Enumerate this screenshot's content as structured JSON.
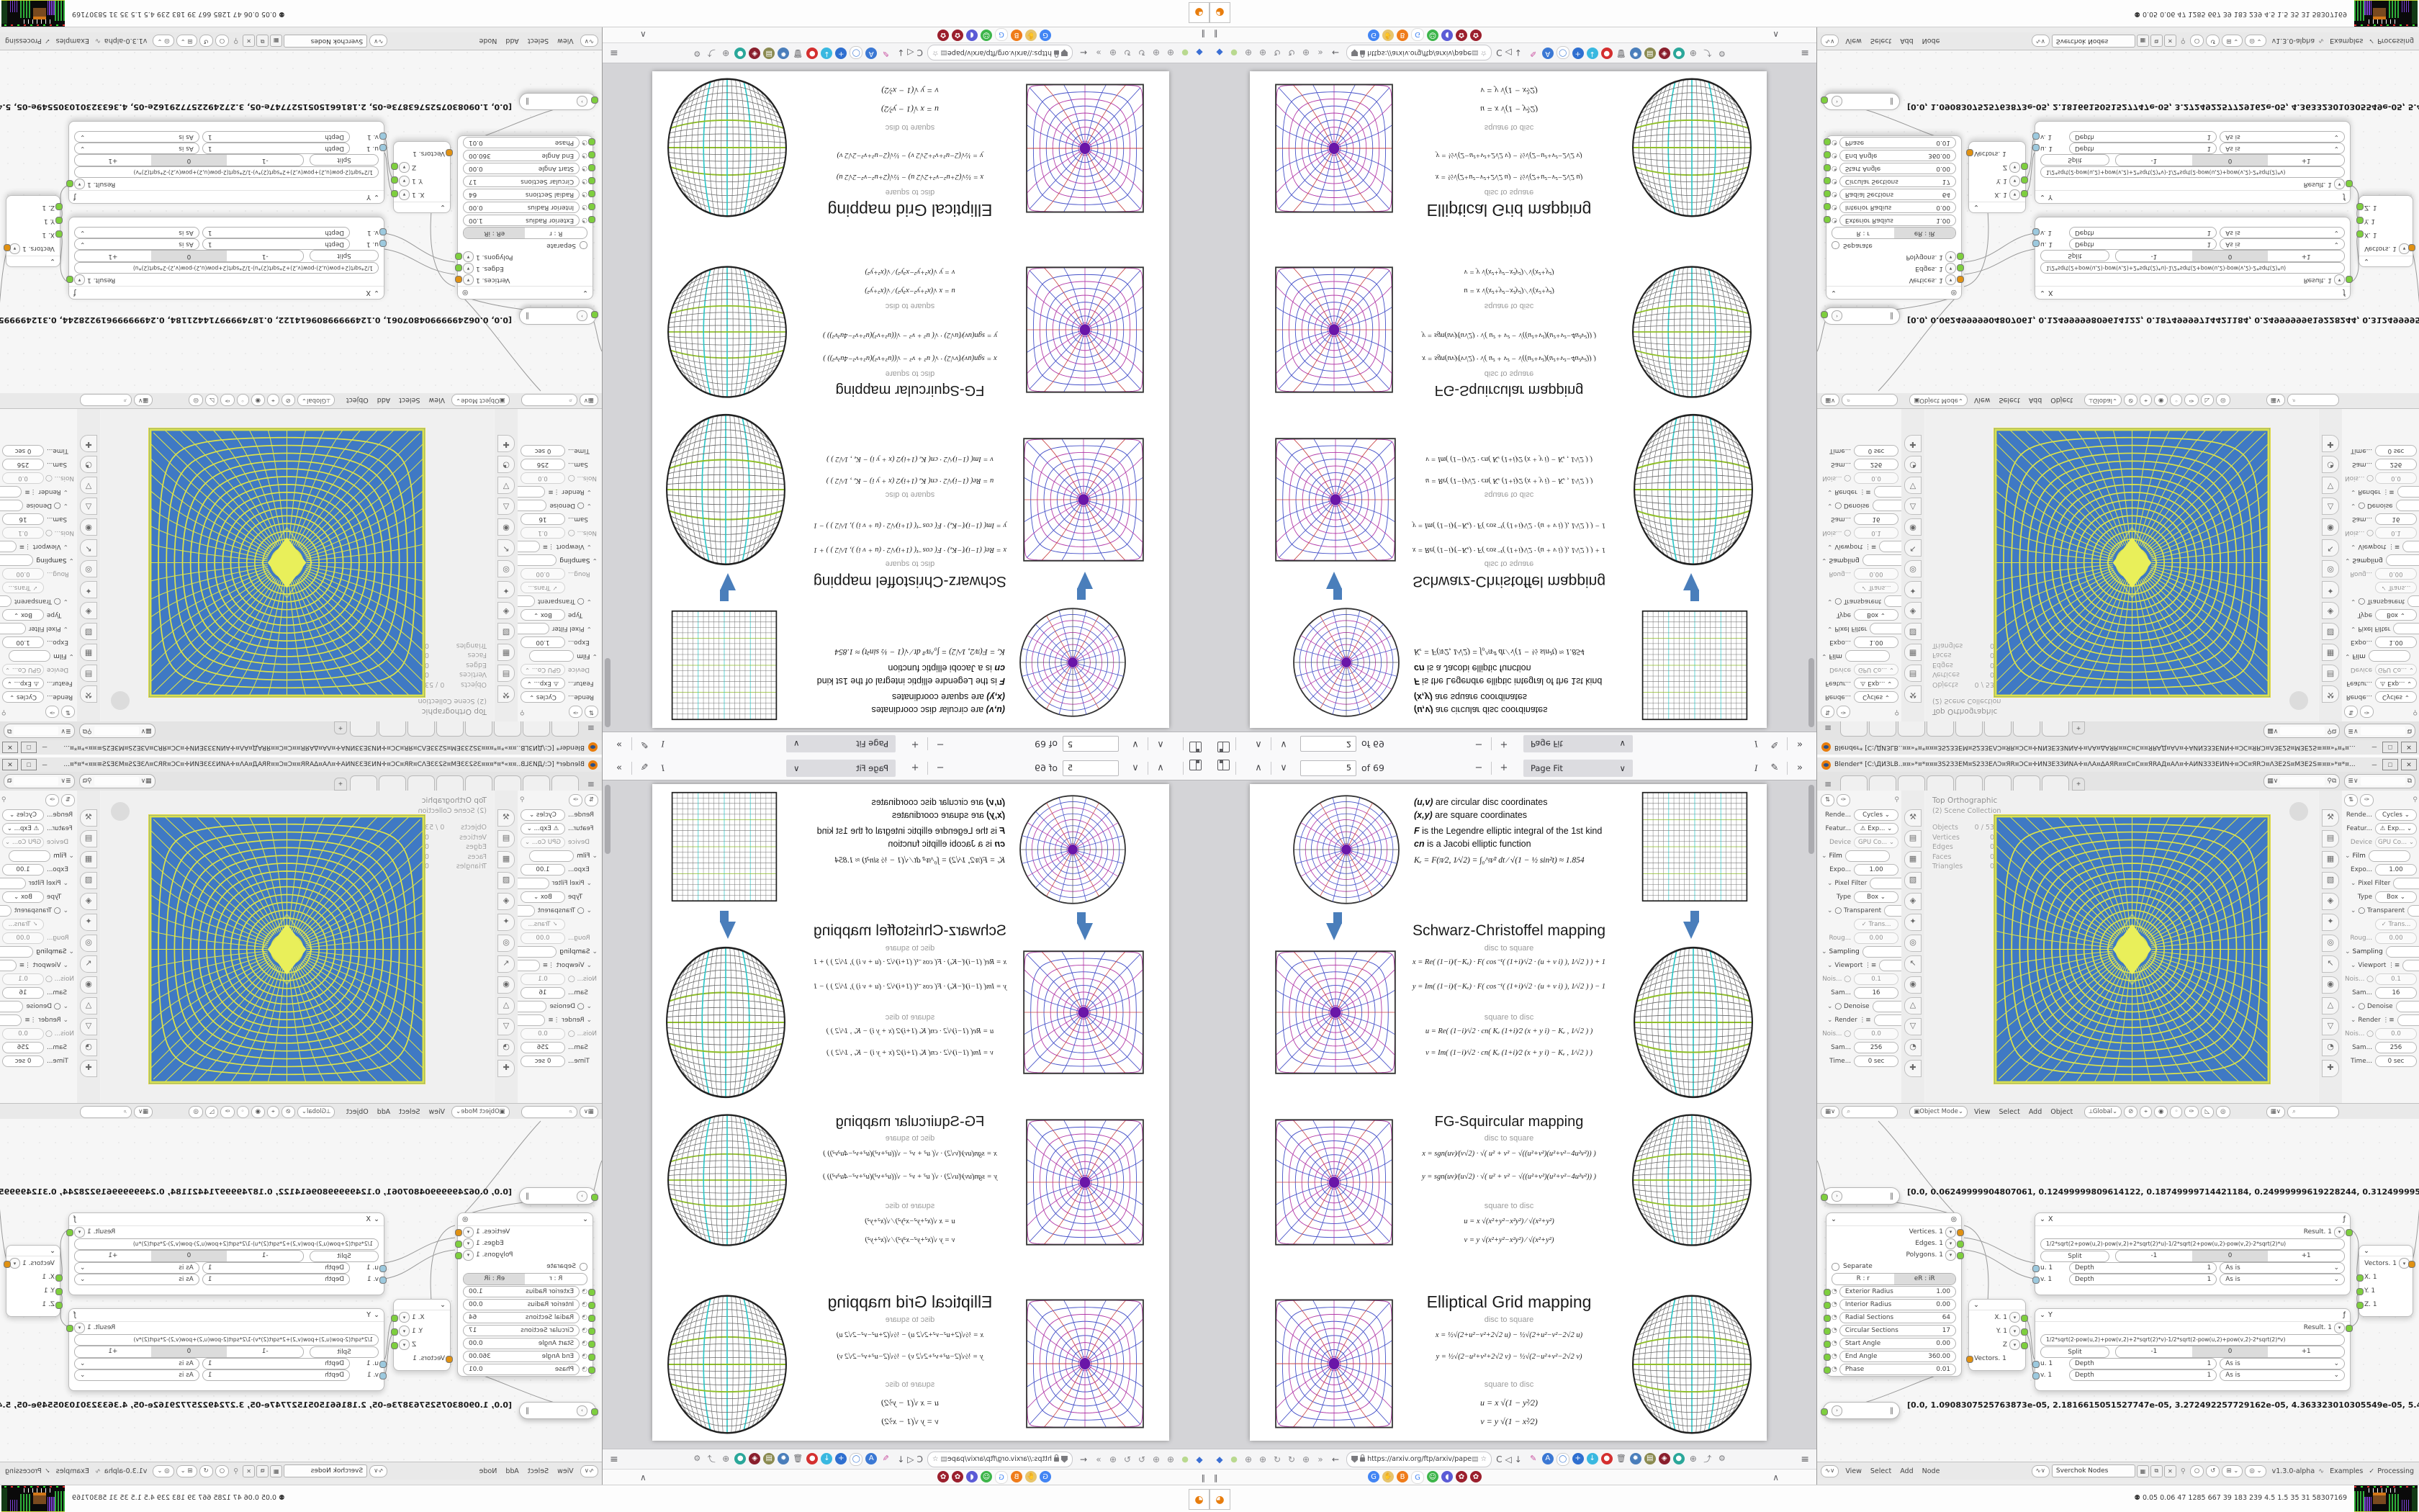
{
  "icons": {
    "chevron_up": "∧",
    "chevron_down": "∨",
    "minus": "−",
    "plus": "+",
    "text_select": "I",
    "draw": "✎",
    "double_chevron": "»",
    "back_arrow": "←",
    "reload": "C",
    "speaker": "◁",
    "download": "↓",
    "menu": "≡",
    "pause": "‖",
    "collapse_up": "∧",
    "star": "☆",
    "reader": "▤",
    "hamburger": "≡",
    "window_min": "─",
    "window_max": "□",
    "window_close": "✕",
    "add_tab": "+",
    "pin": "⚲",
    "copy": "⧉",
    "x_small": "✕",
    "person": "⚉",
    "gear": "⚙",
    "search": "⌕",
    "filter": "⇅",
    "brush": "✑",
    "caret": "⌄",
    "editor_node": "∿",
    "editor_props": "▦",
    "flag": "ƒ",
    "badge": "◎",
    "scene": "▦",
    "view_layer": "≣",
    "check": "✓",
    "dna": "∿",
    "dial": "◔"
  },
  "pdf": {
    "toolbar": {
      "page_value": "5",
      "page_value_top_half": "2",
      "of_label": "of 69",
      "zoom_label": "Page Fit"
    },
    "intro": {
      "uv_lead": "(u,v)",
      "uv_text": " are circular disc coordinates",
      "xy_lead": "(x,y)",
      "xy_text": " are square coordinates",
      "f_lead": "F",
      "f_text": " is the Legendre elliptic integral of the 1st kind",
      "cn_lead": "cn",
      "cn_text": " is a Jacobi elliptic function",
      "ke_equation": "Kₑ = F(π⁄2, 1⁄√2) = ∫₀^π⁄² dt ⁄ √(1 − ½ sin²t)  ≈ 1.854"
    },
    "sections": [
      {
        "title": "Schwarz-Christoffel mapping",
        "disc_to_square": "disc to square",
        "eq_ds_1": "x = Re( (1−i)⁄(−Kₑ) · F( cos⁻¹( (1+i)⁄√2 · (u + v i) ), 1⁄√2 ) ) + 1",
        "eq_ds_2": "y = Im( (1−i)⁄(−Kₑ) · F( cos⁻¹( (1+i)⁄√2 · (u + v i) ), 1⁄√2 ) ) − 1",
        "square_to_disc": "square to disc",
        "eq_sd_1": "u = Re( (1−i)⁄√2 · cn( Kₑ (1+i)⁄2 (x + y i) − Kₑ , 1⁄√2 ) )",
        "eq_sd_2": "v = Im( (1−i)⁄√2 · cn( Kₑ (1+i)⁄2 (x + y i) − Kₑ , 1⁄√2 ) )"
      },
      {
        "title": "FG-Squircular mapping",
        "disc_to_square": "disc to square",
        "eq_ds_1": "x = sgn(uv)⁄(v√2) · √( u² + v² − √((u²+v²)(u²+v²−4u²v²)) )",
        "eq_ds_2": "y = sgn(uv)⁄(u√2) · √( u² + v² − √((u²+v²)(u²+v²−4u²v²)) )",
        "square_to_disc": "square to disc",
        "eq_sd_1": "u = x √(x²+y²−x²y²) ⁄ √(x²+y²)",
        "eq_sd_2": "v = y √(x²+y²−x²y²) ⁄ √(x²+y²)"
      },
      {
        "title": "Elliptical Grid mapping",
        "disc_to_square": "disc to square",
        "eq_ds_1": "x = ½√(2+u²−v²+2√2 u) − ½√(2+u²−v²−2√2 u)",
        "eq_ds_2": "y = ½√(2−u²+v²+2√2 v) − ½√(2−u²+v²−2√2 v)",
        "square_to_disc": "square to disc",
        "eq_sd_1": "u = x √(1 − y²⁄2)",
        "eq_sd_2": "v = y √(1 − x²⁄2)"
      }
    ]
  },
  "browser": {
    "url": "https://arxiv.org/ftp/arxiv/papers/1709/1709",
    "nav_left_icons": [
      {
        "g": "◆",
        "style": "color:#3b6fd4;background:none;font-size:12px"
      },
      {
        "g": "●",
        "style": "color:#b9d98f;background:none;font-size:11px"
      },
      {
        "g": "⊕",
        "style": "color:#8a8a8e;background:none;font-size:12px"
      },
      {
        "g": "⊕",
        "style": "color:#8a8a8e;background:none;font-size:12px"
      },
      {
        "g": "↻",
        "style": "color:#8a8a8e;background:none;font-size:12px"
      },
      {
        "g": "↻",
        "style": "color:#8a8a8e;background:none;font-size:12px"
      },
      {
        "g": "⊕",
        "style": "color:#8a8a8e;background:none;font-size:12px"
      },
      {
        "g": "»",
        "style": "color:#8a8a8e;background:none;font-size:12px"
      }
    ],
    "extension_icons": [
      {
        "g": "✎",
        "style": "color:#c94fa0;background:none;font-size:11px"
      },
      {
        "g": "A",
        "style": "background:#3b78d4"
      },
      {
        "g": "◯",
        "style": "color:#3b78d4;background:#fff;border:1px solid #ccc;color:#3b78d4"
      },
      {
        "g": "+",
        "style": "background:#2f6fd0"
      },
      {
        "g": "↓",
        "style": "background:#39b8e0"
      },
      {
        "g": "●",
        "style": "background:#d42f2f"
      },
      {
        "g": "🗑",
        "style": "color:#6a6a6e;background:none;font-size:11px"
      },
      {
        "g": "✹",
        "style": "background:#4a7ebb"
      },
      {
        "g": "▤",
        "style": "background:#8a8a50"
      },
      {
        "g": "◈",
        "style": "background:#8a1f2d"
      },
      {
        "g": "●",
        "style": "background:#2aa79a"
      },
      {
        "g": "⊕",
        "style": "color:#7a7a7e;background:none;font-size:12px"
      },
      {
        "g": "⤴",
        "style": "color:#7a7a7e;background:none;font-size:11px"
      },
      {
        "g": "⚙",
        "style": "color:#7a7a7e;background:none;font-size:11px"
      }
    ],
    "bookmark_favicons": [
      {
        "g": "G",
        "style": "background:#4285f4"
      },
      {
        "g": "✋",
        "style": "background:#e8c46a;font-size:9px"
      },
      {
        "g": "B",
        "style": "background:#ef7c1a"
      },
      {
        "g": "G",
        "style": "background:#fff;color:#4285f4;border:1px solid #ddd;color:#4285f4"
      },
      {
        "g": "☺",
        "style": "background:#3db54a"
      },
      {
        "g": "◖",
        "style": "background:#5b5bd6"
      },
      {
        "g": "✿",
        "style": "background:#9b1f2d"
      },
      {
        "g": "✿",
        "style": "background:#9b1f2d"
      }
    ]
  },
  "taskbar": {
    "stats": "0.05 0.06  47  1285 667  39  183  239  4.5  1.5  35  31 58307169",
    "apps": [
      {
        "g": "▣",
        "style": "background:#3a3a3e;color:#7db2e8"
      },
      {
        "g": "▦",
        "style": "background:#1f8a3a;color:#dff0d0"
      },
      {
        "g": "64",
        "style": "background:#fff;color:#2a4fd4;font-size:9px;font-weight:bold;border:1px solid #2a4fd4"
      },
      {
        "g": "●",
        "style": "background:#fff;color:#e66000"
      },
      {
        "g": "▤",
        "style": "background:#fff;color:#9a9ad0;border:1px solid #bbb"
      },
      {
        "g": "🗔",
        "style": "background:#fff;color:#667;font-size:11px"
      },
      {
        "g": "◕",
        "style": "background:#fff;color:#e87d0d"
      }
    ]
  },
  "blender": {
    "title": "Blender* [C:\\ДИЗLB..¤¤»*¤*¤¤¤ЗS2ЗЗEM¤S2ЗЗEΛϽ¤ЯR¤ϽC¤✛ИNЗEЗЗИNA✛¤ΛA¤ΔAЯR¤¤Ϲ¤Ϲ¤¤ЯRAД¤AΛ¤✛AИNЗЗЗEИN✛¤ϽC¤ЯRϽ¤ΛЗE2S¤MЗE2S≡¤¤»*¤*¤...",
    "tabs": [
      "",
      "",
      "",
      "",
      "",
      "",
      "",
      ""
    ],
    "viewport": {
      "view_label": "Top Orthographic",
      "collection_label": "(2) Scene Collection",
      "stats": [
        {
          "k": "Objects",
          "v": "0 / 53"
        },
        {
          "k": "Vertices",
          "v": "0"
        },
        {
          "k": "Edges",
          "v": "0"
        },
        {
          "k": "Faces",
          "v": "0"
        },
        {
          "k": "Triangles",
          "v": "0"
        }
      ],
      "header": {
        "mode": "Object Mode",
        "menus": [
          {
            "g": "View"
          },
          {
            "g": "Select"
          },
          {
            "g": "Add"
          },
          {
            "g": "Object"
          }
        ],
        "orientation": "Global",
        "tools": [
          {
            "g": "⊘"
          },
          {
            "g": "⌖"
          },
          {
            "g": "◉"
          },
          {
            "g": "◦"
          },
          {
            "g": "✑"
          },
          {
            "g": "◺"
          },
          {
            "g": "◎"
          }
        ]
      },
      "grid": {
        "radial_sections": 64,
        "circular_sections": 17,
        "bg": "#3f79c4",
        "line": "#dce24a",
        "center": "#e9ef5a"
      }
    },
    "properties": {
      "tabs": [
        {
          "g": "⚒"
        },
        {
          "g": "▤"
        },
        {
          "g": "▦"
        },
        {
          "g": "▧"
        },
        {
          "g": "◈"
        },
        {
          "g": "✦"
        },
        {
          "g": "◎"
        },
        {
          "g": "↖"
        },
        {
          "g": "◉"
        },
        {
          "g": "△"
        },
        {
          "g": "▽"
        },
        {
          "g": "◔"
        },
        {
          "g": "✚"
        }
      ],
      "rows": [
        {
          "t": "",
          "l": "Rende...",
          "v": "Cycles ⌄"
        },
        {
          "t": "",
          "l": "Featur...",
          "v": "⚠ Exp... ⌄"
        },
        {
          "t": "dim",
          "l": "Device",
          "v": "GPU Co... ⌄"
        },
        {
          "t": "section",
          "l": "Film",
          "v": ""
        },
        {
          "t": "",
          "l": "Expo...",
          "v": "1.00"
        },
        {
          "t": "sub",
          "l": "Pixel Filter",
          "v": ""
        },
        {
          "t": "",
          "l": "Type",
          "v": "Box ⌄"
        },
        {
          "t": "sub",
          "l": "◯ Transparent",
          "v": ""
        },
        {
          "t": "dim",
          "l": "",
          "v": "✓ Trans..."
        },
        {
          "t": "dim",
          "l": "Roug...",
          "v": "0.00"
        },
        {
          "t": "section",
          "l": "Sampling",
          "v": ""
        },
        {
          "t": "sub",
          "l": "Viewport ⋮≡",
          "v": ""
        },
        {
          "t": "dim",
          "l": "Nois... ◯",
          "v": "0.1"
        },
        {
          "t": "",
          "l": "Sam...",
          "v": "16"
        },
        {
          "t": "sub",
          "l": "◯ Denoise",
          "v": ""
        },
        {
          "t": "sub",
          "l": "Render ⋮≡",
          "v": ""
        },
        {
          "t": "dim",
          "l": "Nois... ◯",
          "v": "0.0"
        },
        {
          "t": "",
          "l": "Sam...",
          "v": "256"
        },
        {
          "t": "",
          "l": "Time...",
          "v": "0 sec"
        }
      ]
    },
    "node_editor": {
      "string_top": "[0.0, 0.06249999904807061, 0.12499999809614122, 0.18749999714421184, 0.24999999619228244, 0.31249999524035305, 0.374",
      "string_bottom": "[0.0, 1.0908307525763873e-05, 2.1816615051527747e-05, 3.272492257729162e-05, 4.363323010305549e-05, 5.454153762881936",
      "torus": {
        "out_vertices": "Vertices. 1",
        "out_edges": "Edges. 1",
        "out_polygons": "Polygons. 1",
        "separate": "Separate",
        "seg_left": "R : r",
        "seg_right": "eR : iR",
        "params": [
          {
            "l": "Exterior Radius",
            "v": "1.00"
          },
          {
            "l": "Interior Radius",
            "v": "0.00"
          },
          {
            "l": "Radial Sections",
            "v": "64"
          },
          {
            "l": "Circular Sections",
            "v": "17"
          },
          {
            "l": "Start Angle",
            "v": "0.00"
          },
          {
            "l": "End Angle",
            "v": "360.00"
          },
          {
            "l": "Phase",
            "v": "0.01"
          }
        ]
      },
      "x_node": {
        "title": "X",
        "result": "Result. 1",
        "formula": "1/2*sqrt(2+pow(u,2)-pow(v,2)+2*sqrt(2)*u)-1/2*sqrt(2+pow(u,2)-pow(v,2)-2*sqrt(2)*u)",
        "split": "Split",
        "m1": "-1",
        "z": "0",
        "p1": "+1",
        "u_label": "u. 1",
        "v_label": "v. 1",
        "depth": "Depth",
        "depth_v": "1",
        "asis": "As is"
      },
      "y_node": {
        "title": "Y",
        "result": "Result. 1",
        "formula": "1/2*sqrt(2-pow(u,2)+pow(v,2)+2*sqrt(2)*v)-1/2*sqrt(2-pow(u,2)+pow(v,2)-2*sqrt(2)*v)",
        "split": "Split",
        "m1": "-1",
        "z": "0",
        "p1": "+1",
        "u_label": "u. 1",
        "v_label": "v. 1",
        "depth": "Depth",
        "depth_v": "1",
        "asis": "As is"
      },
      "vec_out": {
        "x": "X. 1",
        "y": "Y. 1",
        "z": "Z",
        "vectors": "Vectors. 1"
      },
      "vec_in": {
        "vectors": "Vectors. 1",
        "x": "X. 1",
        "y": "Y. 1",
        "z": "Z. 1"
      },
      "header": {
        "menus": [
          {
            "g": "View"
          },
          {
            "g": "Select"
          },
          {
            "g": "Add"
          },
          {
            "g": "Node"
          }
        ],
        "search_value": "Sverchok Nodes",
        "version": "v1.3.0-alpha",
        "examples": "Examples",
        "processing": "Processing"
      }
    }
  }
}
